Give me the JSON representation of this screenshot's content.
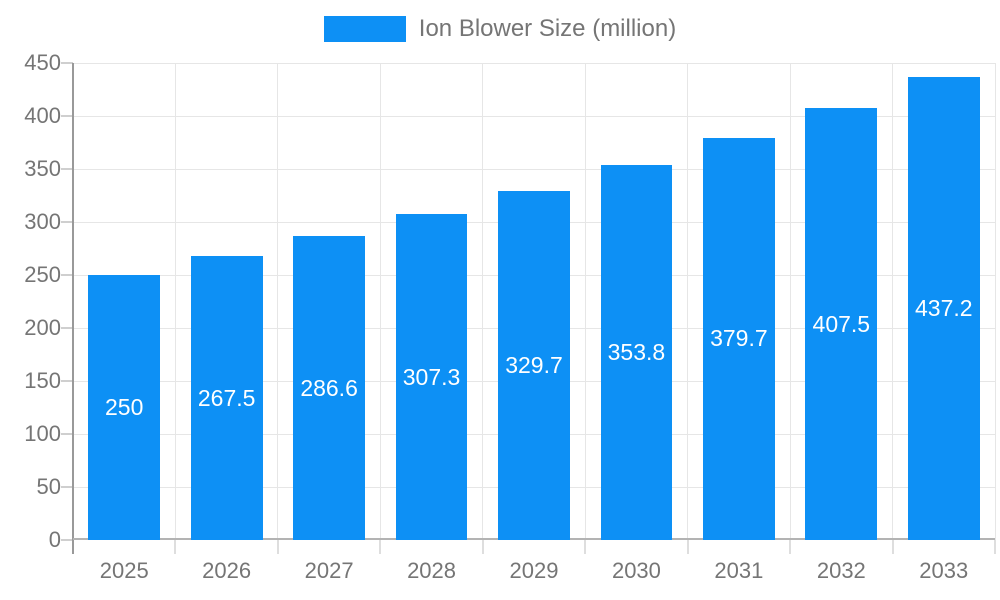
{
  "legend": {
    "label": "Ion Blower Size (million)"
  },
  "chart_data": {
    "type": "bar",
    "title": "",
    "categories": [
      "2025",
      "2026",
      "2027",
      "2028",
      "2029",
      "2030",
      "2031",
      "2032",
      "2033"
    ],
    "series": [
      {
        "name": "Ion Blower Size (million)",
        "values": [
          250,
          267.5,
          286.6,
          307.3,
          329.7,
          353.8,
          379.7,
          407.5,
          437.2
        ]
      }
    ],
    "value_labels": [
      "250",
      "267.5",
      "286.6",
      "307.3",
      "329.7",
      "353.8",
      "379.7",
      "407.5",
      "437.2"
    ],
    "xlabel": "",
    "ylabel": "",
    "ylim": [
      0,
      450
    ],
    "ytick_step": 50,
    "grid": true,
    "legend_position": "top-center",
    "value_label_position": "inside-center",
    "colors": {
      "bar": "#0d90f5",
      "grid": "#e6e6e6",
      "y_axis": "#999999",
      "x_axis": "#b3b3b3",
      "tick": "#cfcfcf",
      "x_tick": "#dedede",
      "axis_text": "#757575",
      "value_text": "#ffffff"
    }
  }
}
